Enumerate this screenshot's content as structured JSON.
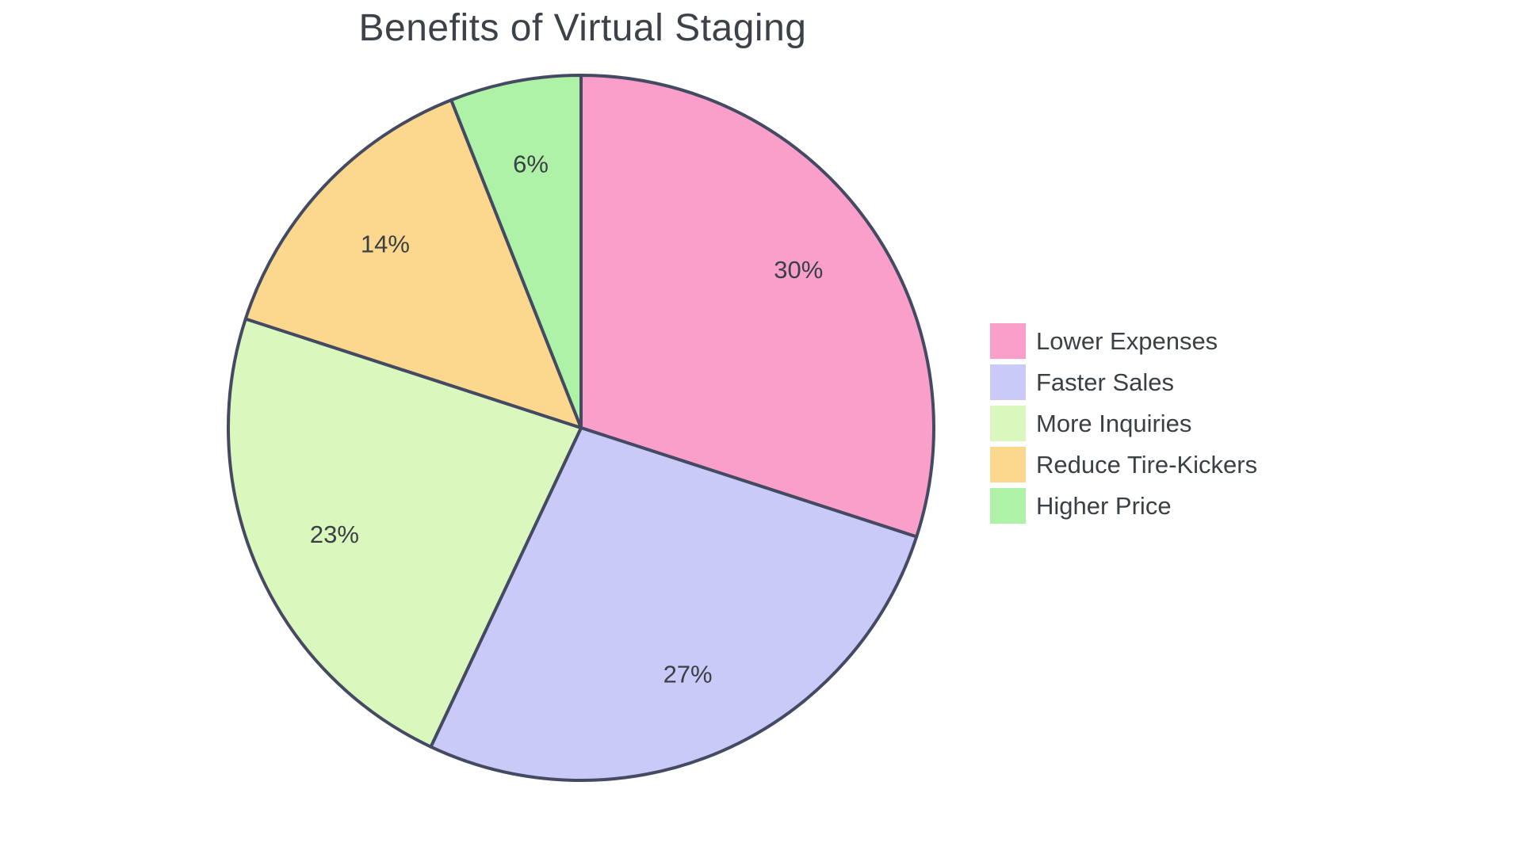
{
  "page": {
    "background_color": "#FFFFFF"
  },
  "chart_data": {
    "type": "pie",
    "title": "Benefits of Virtual Staging",
    "slices": [
      {
        "label": "Lower Expenses",
        "value": 30,
        "pct_label": "30%",
        "color": "#FA9ECA"
      },
      {
        "label": "Faster Sales",
        "value": 27,
        "pct_label": "27%",
        "color": "#C9CAF7"
      },
      {
        "label": "More Inquiries",
        "value": 23,
        "pct_label": "23%",
        "color": "#DAF7BE"
      },
      {
        "label": "Reduce Tire-Kickers",
        "value": 14,
        "pct_label": "14%",
        "color": "#FBD88D"
      },
      {
        "label": "Higher Price",
        "value": 6,
        "pct_label": "6%",
        "color": "#ADF2A6"
      }
    ],
    "start_angle_deg": 0,
    "direction": "clockwise",
    "legend_position": "right",
    "slice_stroke_color": "#454A63",
    "slice_stroke_width": 4,
    "pct_label_color": "#3B4046",
    "legend_text_color": "#3B4046",
    "title_color": "#3D4148"
  }
}
